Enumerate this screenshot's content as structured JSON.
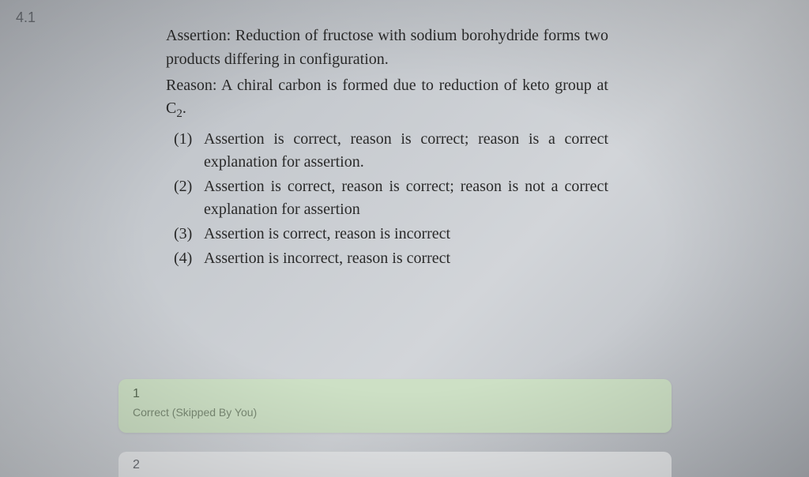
{
  "page_number": "4.1",
  "question": {
    "assertion_label": "Assertion:",
    "assertion_text": "Reduction of fructose with sodium borohydride forms two products differing in configuration.",
    "reason_label": "Reason:",
    "reason_text_pre": "A chiral carbon is formed due to reduction of keto group at C",
    "reason_sub": "2",
    "reason_text_post": ".",
    "options": [
      {
        "num": "(1)",
        "text": "Assertion is correct, reason is correct; reason is a correct explanation for assertion."
      },
      {
        "num": "(2)",
        "text": "Assertion is correct, reason is correct; reason is not a correct explanation for assertion"
      },
      {
        "num": "(3)",
        "text": "Assertion is correct, reason is incorrect"
      },
      {
        "num": "(4)",
        "text": "Assertion is incorrect, reason is correct"
      }
    ]
  },
  "answer": {
    "number": "1",
    "status": "Correct (Skipped By You)"
  },
  "next": {
    "number": "2"
  },
  "style": {
    "body_font_size": 20,
    "text_color": "#2a2a2a",
    "badge_bg": "#cde0c5",
    "badge_text": "#7a8a74",
    "next_bg": "#e6e8ea",
    "page_bg_gradient": [
      "#b8bcc2",
      "#c5c9ce",
      "#d2d5d9",
      "#b0b4ba"
    ]
  }
}
